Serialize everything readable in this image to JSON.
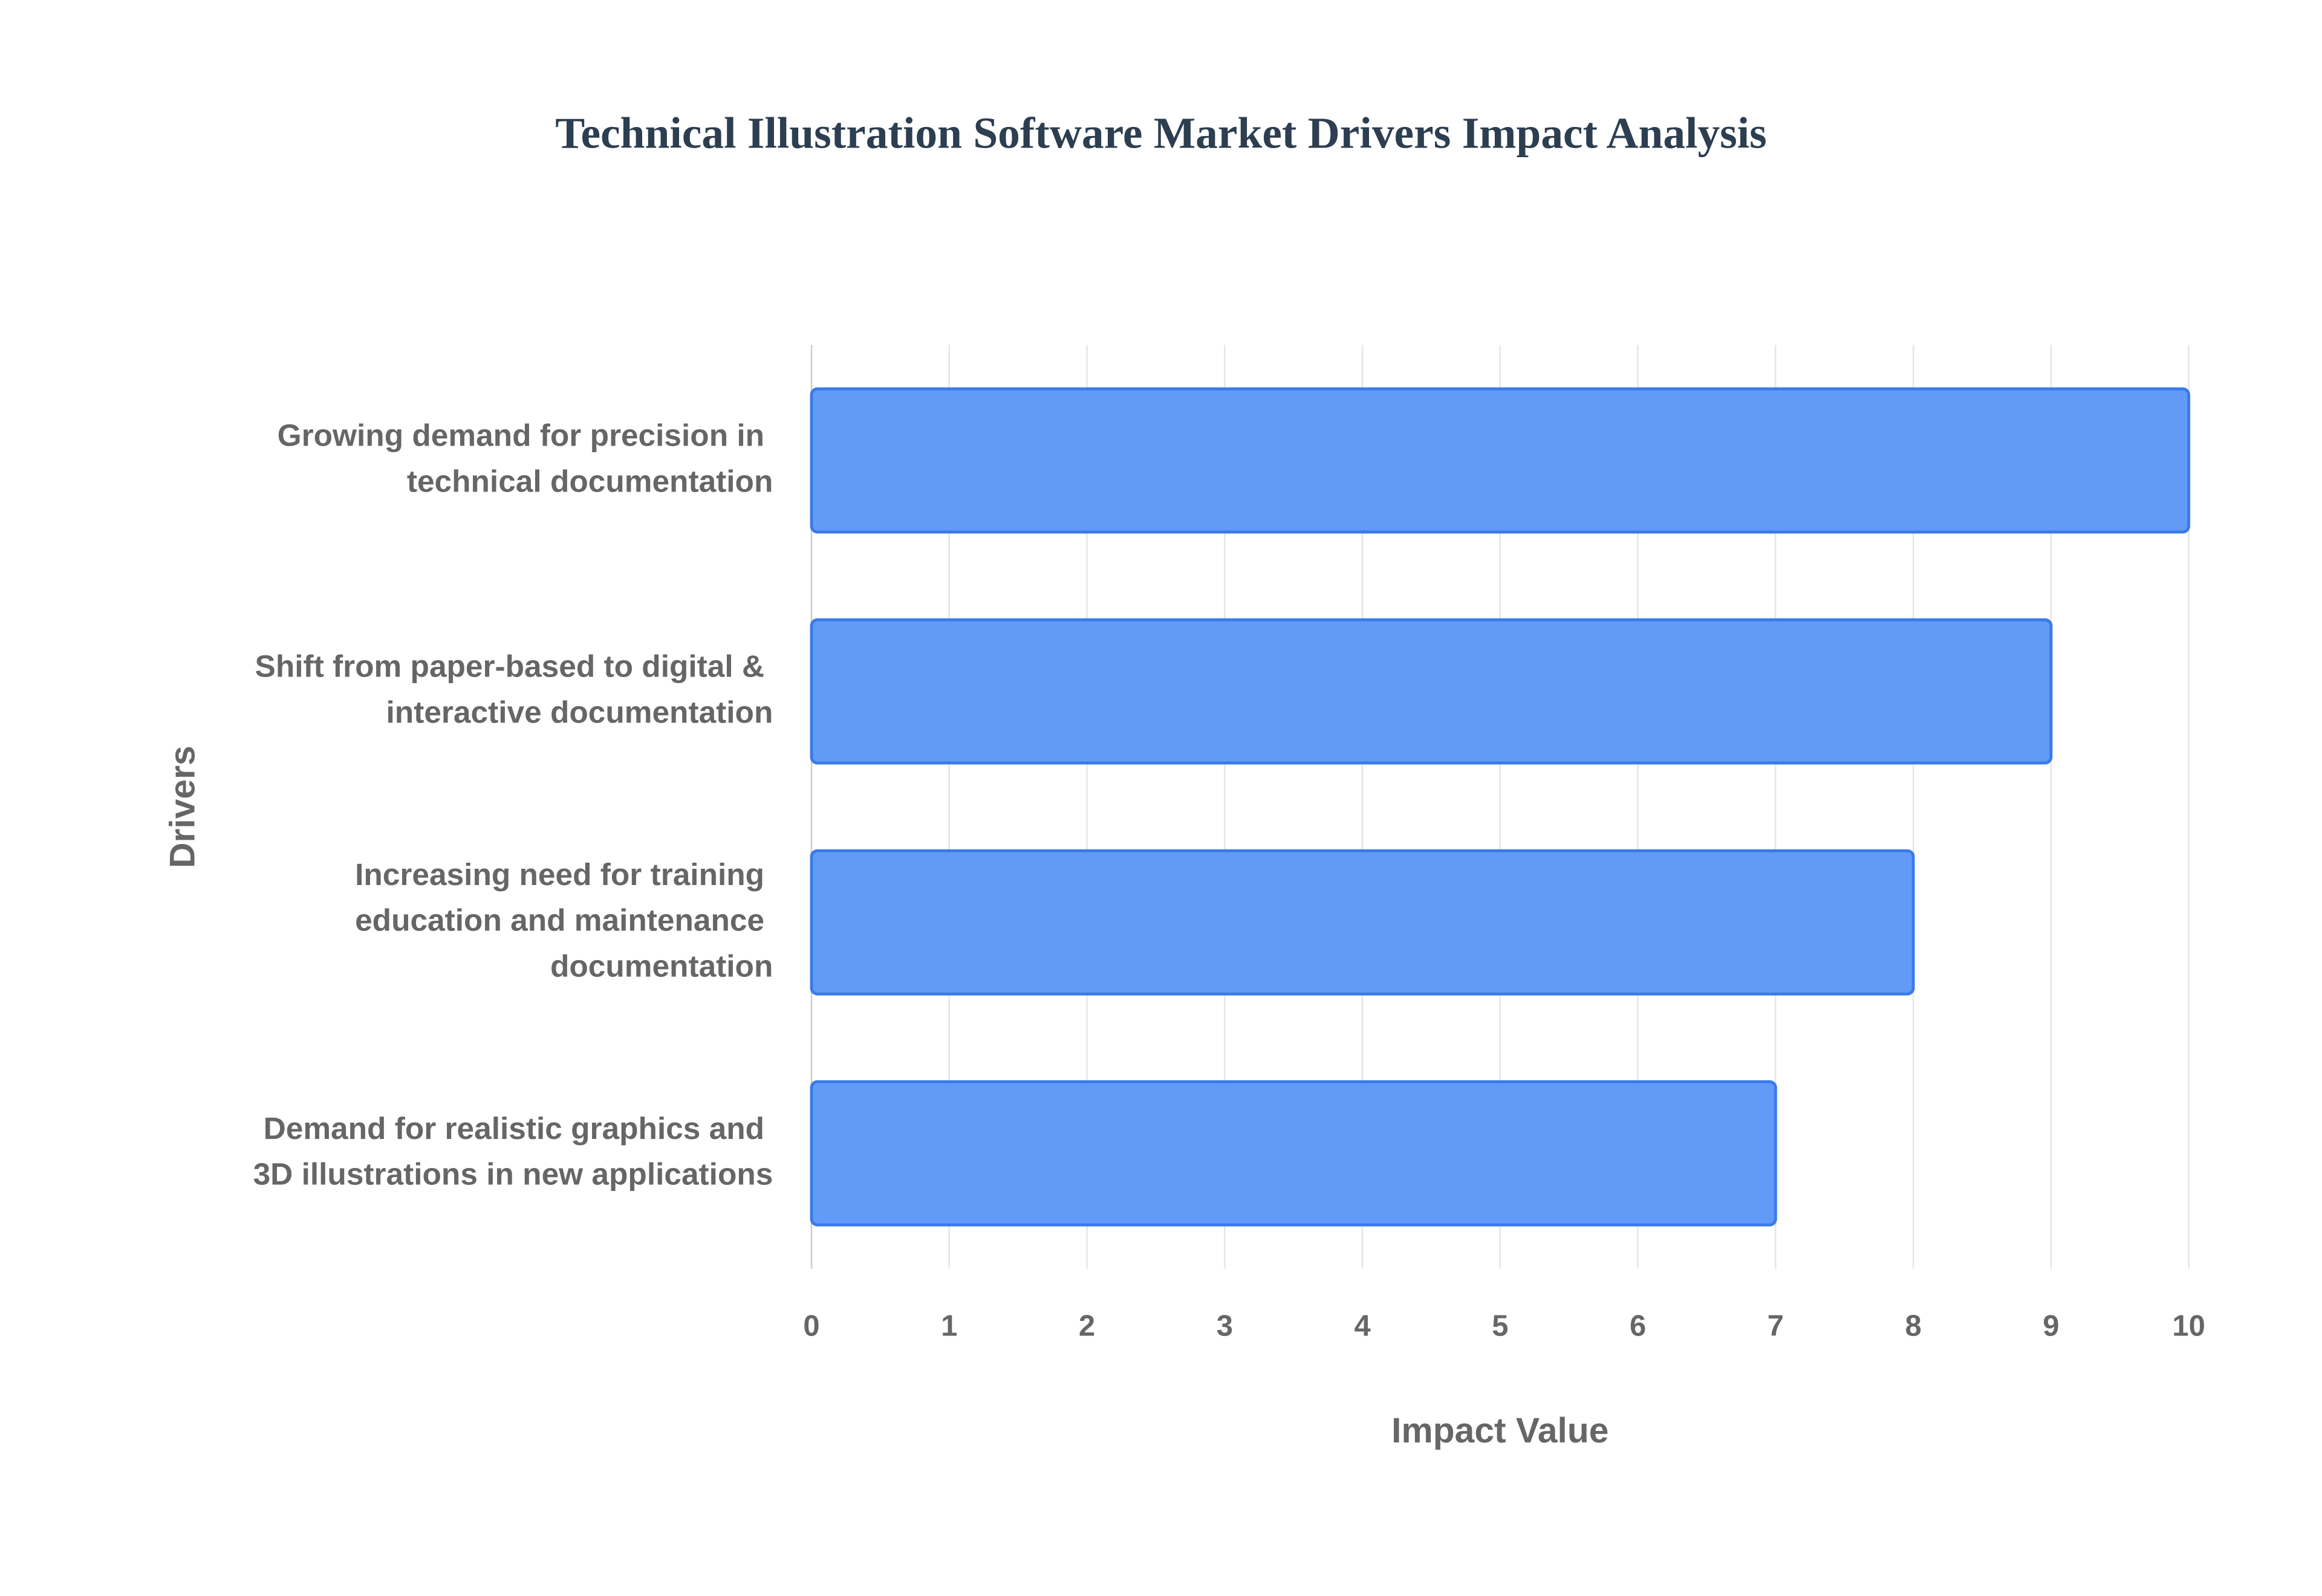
{
  "chart_data": {
    "type": "bar",
    "orientation": "horizontal",
    "title": "Technical Illustration Software Market Drivers Impact Analysis",
    "x_label": "Impact Value",
    "y_label": "Drivers",
    "categories": [
      "Growing demand for precision in technical documentation",
      "Shift from paper-based to digital & interactive documentation",
      "Increasing need for training education and maintenance documentation",
      "Demand for realistic graphics and 3D illustrations in new applications"
    ],
    "values": [
      10,
      9,
      8,
      7
    ],
    "color": "#619bf7",
    "xlim": [
      0,
      10
    ],
    "xticks": [
      0,
      1,
      2,
      3,
      4,
      5,
      6,
      7,
      8,
      9,
      10
    ],
    "grid": true
  }
}
